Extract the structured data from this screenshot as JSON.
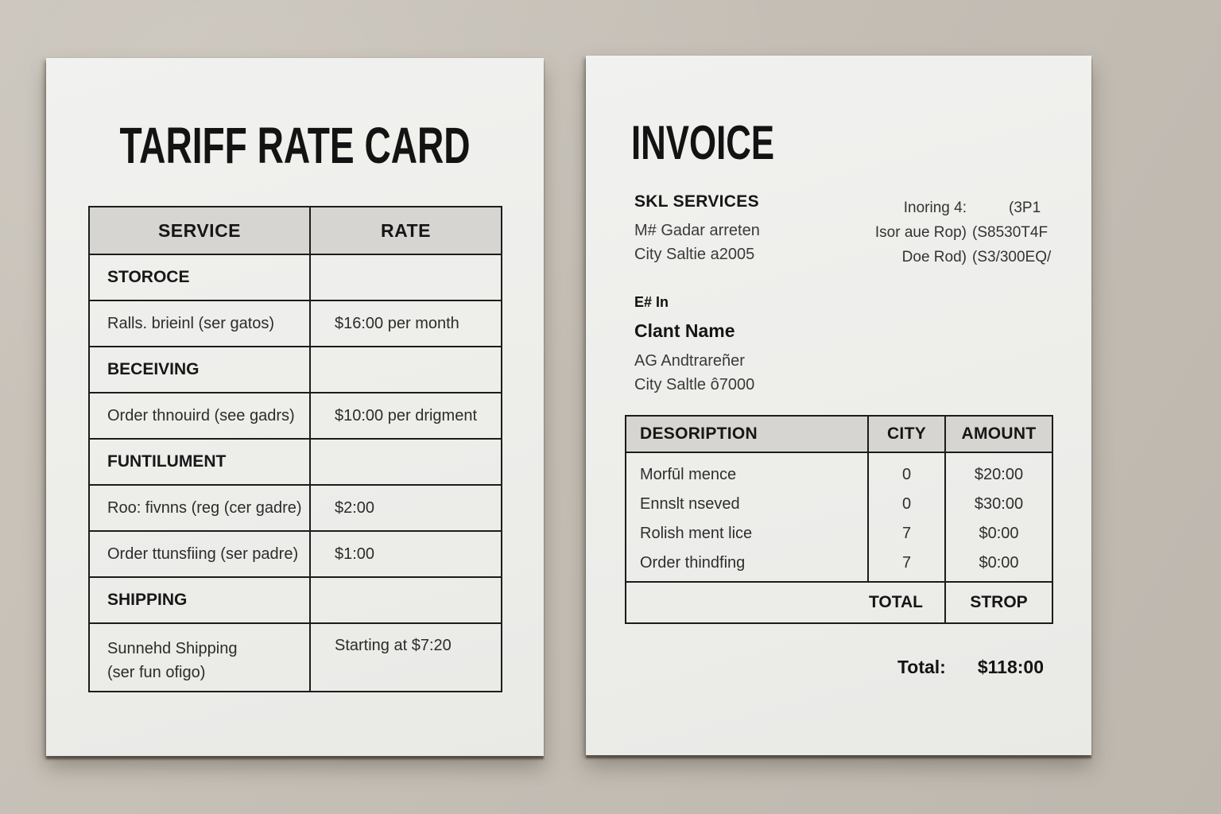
{
  "colors": {
    "background": "#c5bfb6",
    "paper": "#efefed",
    "table_header_fill": "#d6d5d2",
    "border": "#1c1c1c",
    "text": "#1c1c1c"
  },
  "tariff_card": {
    "title": "TARIFF RATE CARD",
    "table": {
      "headers": [
        "SERVICE",
        "RATE"
      ],
      "rows": [
        {
          "type": "section",
          "service": [
            "STOROCE"
          ],
          "rate": ""
        },
        {
          "type": "item",
          "service": [
            "Ralls. brieinl (ser gatos)"
          ],
          "rate": "$16:00 per month"
        },
        {
          "type": "section",
          "service": [
            "BECEIVING"
          ],
          "rate": ""
        },
        {
          "type": "item",
          "service": [
            "Order thnouird (see gadrs)"
          ],
          "rate": "$10:00 per drigment"
        },
        {
          "type": "section",
          "service": [
            "FUNTILUMENT"
          ],
          "rate": ""
        },
        {
          "type": "item",
          "service": [
            "Roo: fivnns (reg (cer gadre)"
          ],
          "rate": "$2:00"
        },
        {
          "type": "item",
          "service": [
            "Order ttunsfiing (ser padre)"
          ],
          "rate": "$1:00"
        },
        {
          "type": "section",
          "service": [
            "SHIPPING"
          ],
          "rate": ""
        },
        {
          "type": "item",
          "tall": true,
          "service": [
            "Sunnehd Shipping",
            "(ser fun ofigo)"
          ],
          "rate": "Starting at $7:20"
        }
      ]
    }
  },
  "invoice": {
    "title": "INVOICE",
    "from": {
      "name": "SKL SERVICES",
      "line1": "M# Gadar arreten",
      "line2": "City Saltie a2005"
    },
    "meta": [
      {
        "label": "Inoring 4:",
        "value": "(3P1"
      },
      {
        "label": "Isor aue Rop)",
        "value": "(S8530T4F"
      },
      {
        "label": "Doe Rod)",
        "value": "(S3/300EQ/"
      }
    ],
    "bill_to": {
      "label": "E# In",
      "client": "Clant Name",
      "line1": "AG Andtrareñer",
      "line2": "City Saltle ô7000"
    },
    "table": {
      "headers": [
        "DESORIPTION",
        "CITY",
        "AMOUNT"
      ],
      "rows": [
        {
          "description": "Morfūl mence",
          "city": "0",
          "amount": "$20:00"
        },
        {
          "description": "Ennslt nseved",
          "city": "0",
          "amount": "$30:00"
        },
        {
          "description": "Rolish ment lice",
          "city": "7",
          "amount": "$0:00"
        },
        {
          "description": "Order thindfing",
          "city": "7",
          "amount": "$0:00"
        }
      ],
      "footer": {
        "total_label": "TOTAL",
        "amount_label": "STROP"
      }
    },
    "total": {
      "label": "Total:",
      "value": "$118:00"
    }
  }
}
